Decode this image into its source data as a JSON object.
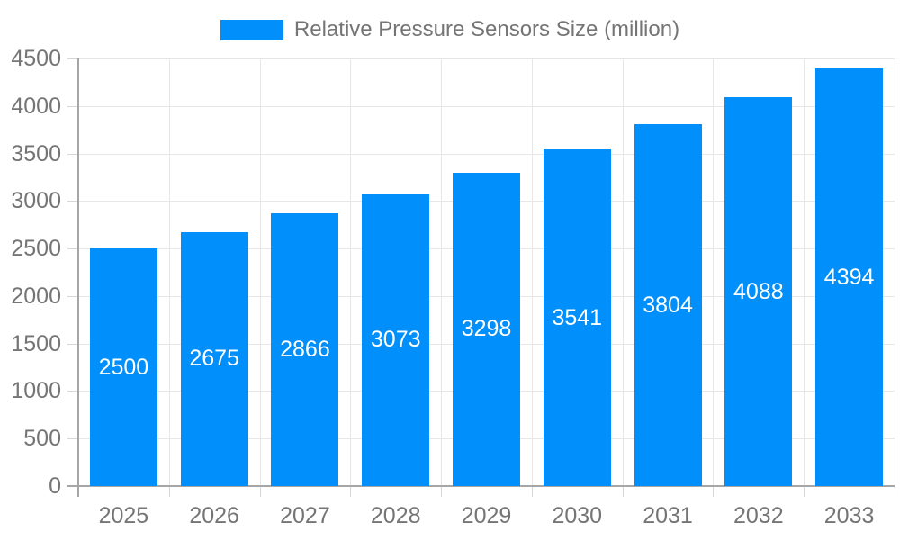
{
  "legend": {
    "label": "Relative Pressure Sensors Size (million)"
  },
  "chart_data": {
    "type": "bar",
    "title": "Relative Pressure Sensors Size (million)",
    "categories": [
      "2025",
      "2026",
      "2027",
      "2028",
      "2029",
      "2030",
      "2031",
      "2032",
      "2033"
    ],
    "series": [
      {
        "name": "Relative Pressure Sensors Size (million)",
        "values": [
          2500,
          2675,
          2866,
          3073,
          3298,
          3541,
          3804,
          4088,
          4394
        ]
      }
    ],
    "xlabel": "",
    "ylabel": "",
    "ylim": [
      0,
      4500
    ],
    "yticks": [
      0,
      500,
      1000,
      1500,
      2000,
      2500,
      3000,
      3500,
      4000,
      4500
    ],
    "grid": true,
    "legend_position": "top-center",
    "bar_label_style": "white-centered-inside",
    "colors": {
      "bar": "#008FFB",
      "bar_label": "#FFFFFF",
      "axis_text": "#757575",
      "grid_line": "#E7E7E7",
      "tick_line": "#D6D6D6",
      "axis_line": "#A6A6A6",
      "background": "#FFFFFF"
    }
  }
}
